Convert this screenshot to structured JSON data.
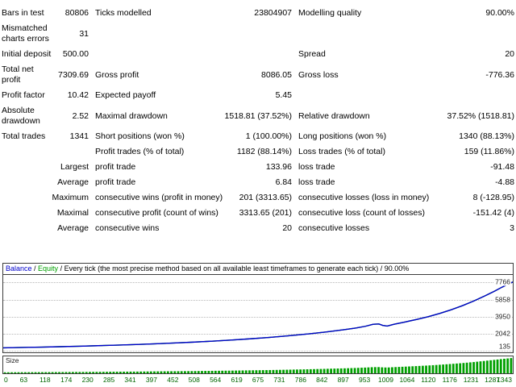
{
  "report": {
    "rows": [
      {
        "c1": "Bars in test",
        "c2": "80806",
        "c3": "Ticks modelled",
        "c4": "23804907",
        "c5": "Modelling quality",
        "c6": "90.00%"
      },
      {
        "c1": "Mismatched charts errors",
        "c2": "31",
        "c3": "",
        "c4": "",
        "c5": "",
        "c6": ""
      },
      {
        "c1": "Initial deposit",
        "c2": "500.00",
        "c3": "",
        "c4": "",
        "c5": "Spread",
        "c6": "20"
      },
      {
        "c1": "Total net profit",
        "c2": "7309.69",
        "c3": "Gross profit",
        "c4": "8086.05",
        "c5": "Gross loss",
        "c6": "-776.36"
      },
      {
        "c1": "Profit factor",
        "c2": "10.42",
        "c3": "Expected payoff",
        "c4": "5.45",
        "c5": "",
        "c6": ""
      },
      {
        "c1": "Absolute drawdown",
        "c2": "2.52",
        "c3": "Maximal drawdown",
        "c4": "1518.81 (37.52%)",
        "c5": "Relative drawdown",
        "c6": "37.52% (1518.81)"
      },
      {
        "c1": "Total trades",
        "c2": "1341",
        "c3": "Short positions (won %)",
        "c4": "1 (100.00%)",
        "c5": "Long positions (won %)",
        "c6": "1340 (88.13%)"
      },
      {
        "c1": "",
        "c2": "",
        "c3": "Profit trades (% of total)",
        "c4": "1182 (88.14%)",
        "c5": "Loss trades (% of total)",
        "c6": "159 (11.86%)"
      },
      {
        "c1": "",
        "c2": "Largest",
        "c3": "profit trade",
        "c4": "133.96",
        "c5": "loss trade",
        "c6": "-91.48"
      },
      {
        "c1": "",
        "c2": "Average",
        "c3": "profit trade",
        "c4": "6.84",
        "c5": "loss trade",
        "c6": "-4.88"
      },
      {
        "c1": "",
        "c2": "Maximum",
        "c3": "consecutive wins (profit in money)",
        "c4": "201 (3313.65)",
        "c5": "consecutive losses (loss in money)",
        "c6": "8 (-128.95)"
      },
      {
        "c1": "",
        "c2": "Maximal",
        "c3": "consecutive profit (count of wins)",
        "c4": "3313.65 (201)",
        "c5": "consecutive loss (count of losses)",
        "c6": "-151.42 (4)"
      },
      {
        "c1": "",
        "c2": "Average",
        "c3": "consecutive wins",
        "c4": "20",
        "c5": "consecutive losses",
        "c6": "3"
      }
    ]
  },
  "chart_data": {
    "type": "line",
    "legend": {
      "balance": "Balance",
      "sep": " / ",
      "equity": "Equity",
      "rest": " / Every tick (the most precise method based on all available least timeframes to generate each tick) / 90.00%"
    },
    "size_label": "Size",
    "x_domain": [
      0,
      1343
    ],
    "y_domain": [
      0,
      8600
    ],
    "size_domain": [
      0,
      33
    ],
    "y_ticks": [
      7766,
      5858,
      3950,
      2042,
      135
    ],
    "x_ticks": [
      0,
      63,
      118,
      174,
      230,
      285,
      341,
      397,
      452,
      508,
      564,
      619,
      675,
      731,
      786,
      842,
      897,
      953,
      1009,
      1064,
      1120,
      1176,
      1231,
      1287,
      1343
    ],
    "axis_color": "#006600",
    "scale_color": "#222222",
    "grid": true,
    "legend_position": "top-left",
    "series": [
      {
        "name": "Equity",
        "type": "line",
        "color": "#00a000",
        "x": [
          0,
          50,
          100,
          150,
          200,
          250,
          300,
          350,
          400,
          450,
          500,
          550,
          600,
          650,
          700,
          750,
          800,
          850,
          900,
          930,
          955,
          975,
          990,
          1000,
          1012,
          1030,
          1060,
          1090,
          1120,
          1150,
          1180,
          1210,
          1240,
          1270,
          1295,
          1315,
          1330,
          1343
        ],
        "values": [
          500,
          540,
          580,
          628,
          680,
          738,
          800,
          870,
          950,
          1040,
          1130,
          1240,
          1360,
          1500,
          1650,
          1830,
          2030,
          2260,
          2530,
          2700,
          2900,
          3120,
          3150,
          3000,
          2920,
          3120,
          3380,
          3660,
          3960,
          4320,
          4720,
          5180,
          5700,
          6280,
          6800,
          7250,
          7550,
          7810
        ]
      },
      {
        "name": "Balance",
        "type": "line",
        "color": "#0000cc",
        "x": [
          0,
          50,
          100,
          150,
          200,
          250,
          300,
          350,
          400,
          450,
          500,
          550,
          600,
          650,
          700,
          750,
          800,
          850,
          900,
          930,
          955,
          975,
          990,
          1000,
          1012,
          1030,
          1060,
          1090,
          1120,
          1150,
          1180,
          1210,
          1240,
          1270,
          1295,
          1315,
          1330,
          1343
        ],
        "values": [
          500,
          540,
          580,
          628,
          680,
          738,
          800,
          870,
          950,
          1040,
          1130,
          1240,
          1360,
          1500,
          1650,
          1830,
          2030,
          2260,
          2530,
          2700,
          2900,
          3120,
          3150,
          3000,
          2920,
          3120,
          3380,
          3660,
          3960,
          4320,
          4720,
          5180,
          5700,
          6280,
          6800,
          7250,
          7550,
          7810
        ]
      },
      {
        "name": "Size",
        "type": "bar",
        "color": "#00a000",
        "x": [
          0,
          50,
          100,
          150,
          200,
          250,
          300,
          350,
          400,
          450,
          500,
          550,
          600,
          650,
          700,
          750,
          800,
          850,
          900,
          930,
          955,
          975,
          990,
          1000,
          1012,
          1030,
          1060,
          1090,
          1120,
          1150,
          1180,
          1210,
          1240,
          1270,
          1295,
          1315,
          1330,
          1343
        ],
        "values": [
          1.9,
          2.1,
          2.2,
          2.4,
          2.6,
          2.8,
          3.1,
          3.3,
          3.7,
          4.0,
          4.3,
          4.8,
          5.2,
          5.8,
          6.3,
          7.0,
          7.8,
          8.7,
          9.7,
          10.4,
          11.2,
          12.0,
          12.1,
          11.5,
          11.2,
          12.0,
          13.0,
          14.1,
          15.2,
          16.6,
          18.2,
          19.9,
          21.9,
          24.2,
          26.2,
          27.9,
          29.0,
          30.0
        ]
      }
    ]
  }
}
